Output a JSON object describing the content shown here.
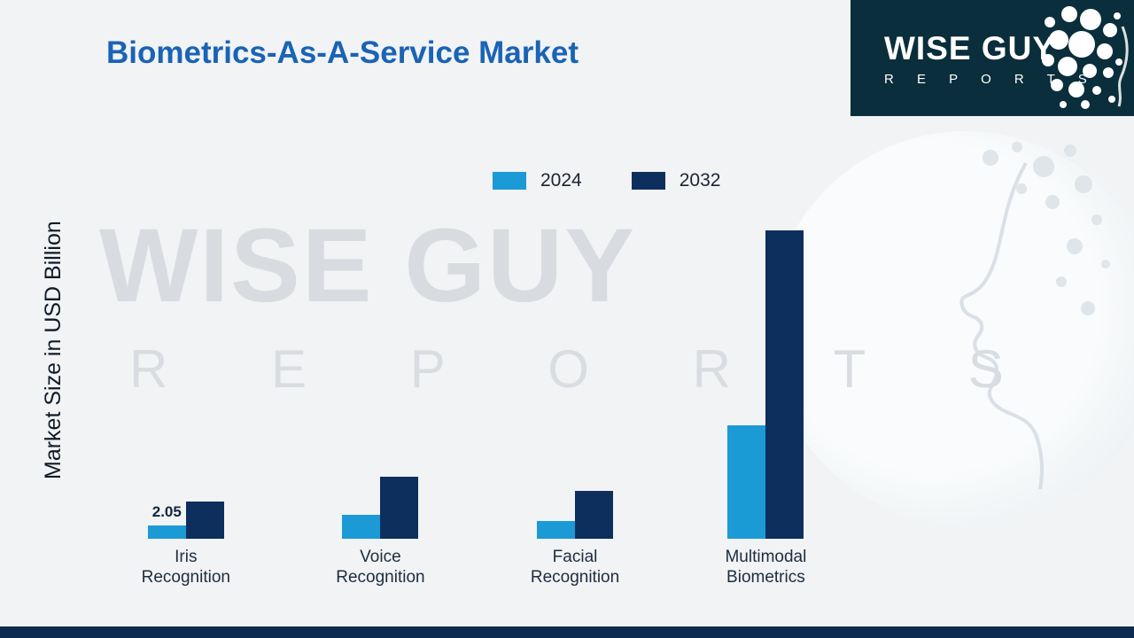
{
  "page": {
    "title": "Biometrics-As-A-Service Market"
  },
  "logo": {
    "line1": "WISE GUY",
    "line2": "R E P O R T S"
  },
  "watermark": {
    "line1": "WISE GUY",
    "line2": "R E P O R T S"
  },
  "chart_data": {
    "type": "bar",
    "title": "Biometrics-As-A-Service Market",
    "xlabel": "",
    "ylabel": "Market Size in USD Billion",
    "unit": "USD Billion",
    "categories": [
      "Iris\nRecognition",
      "Voice\nRecognition",
      "Facial\nRecognition",
      "Multimodal\nBiometrics"
    ],
    "series": [
      {
        "name": "2024",
        "color": "#1b9ad6",
        "values": [
          2.05,
          3.8,
          2.75,
          17.8
        ],
        "value_labels": [
          "2.05",
          "",
          "",
          ""
        ]
      },
      {
        "name": "2032",
        "color": "#0d2f5e",
        "values": [
          5.9,
          9.7,
          7.5,
          48.3
        ],
        "value_labels": [
          "",
          "",
          "",
          ""
        ]
      }
    ],
    "ylim": [
      0,
      50
    ],
    "grid": false,
    "legend_position": "top"
  },
  "colors": {
    "title_blue": "#1a63b5",
    "series_2024": "#1b9ad6",
    "series_2032": "#0d2f5e",
    "logo_background": "#0a2e3b",
    "bottom_strip": "#0d2b50",
    "background": "#f1f3f5"
  }
}
